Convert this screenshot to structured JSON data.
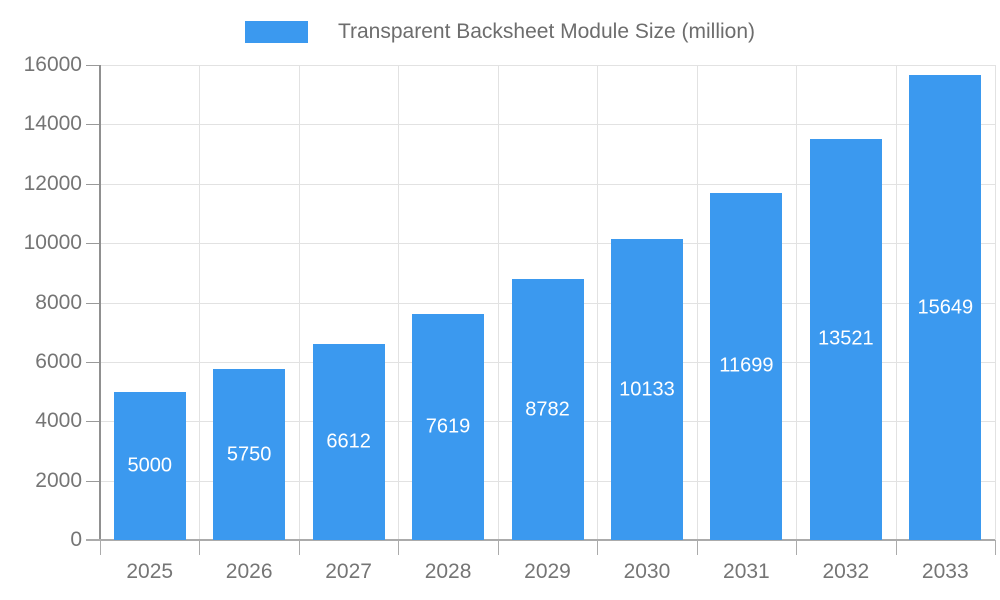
{
  "chart_data": {
    "type": "bar",
    "title": "Transparent Backsheet Module Size (million)",
    "legend": {
      "label": "Transparent Backsheet Module Size (million)",
      "position": "top-center"
    },
    "categories": [
      "2025",
      "2026",
      "2027",
      "2028",
      "2029",
      "2030",
      "2031",
      "2032",
      "2033"
    ],
    "values": [
      5000,
      5750,
      6612,
      7619,
      8782,
      10133,
      11699,
      13521,
      15649
    ],
    "xlabel": "",
    "ylabel": "",
    "ylim": [
      0,
      16000
    ],
    "y_ticks": [
      0,
      2000,
      4000,
      6000,
      8000,
      10000,
      12000,
      14000,
      16000
    ],
    "grid": "horizontal and vertical gridlines on",
    "colors": {
      "bar": "#3B99EF",
      "bar_value_label": "#FFFFFF",
      "axis_text": "#757575",
      "legend_text": "#6D6D6D",
      "gridline": "#E2E2E2"
    }
  }
}
